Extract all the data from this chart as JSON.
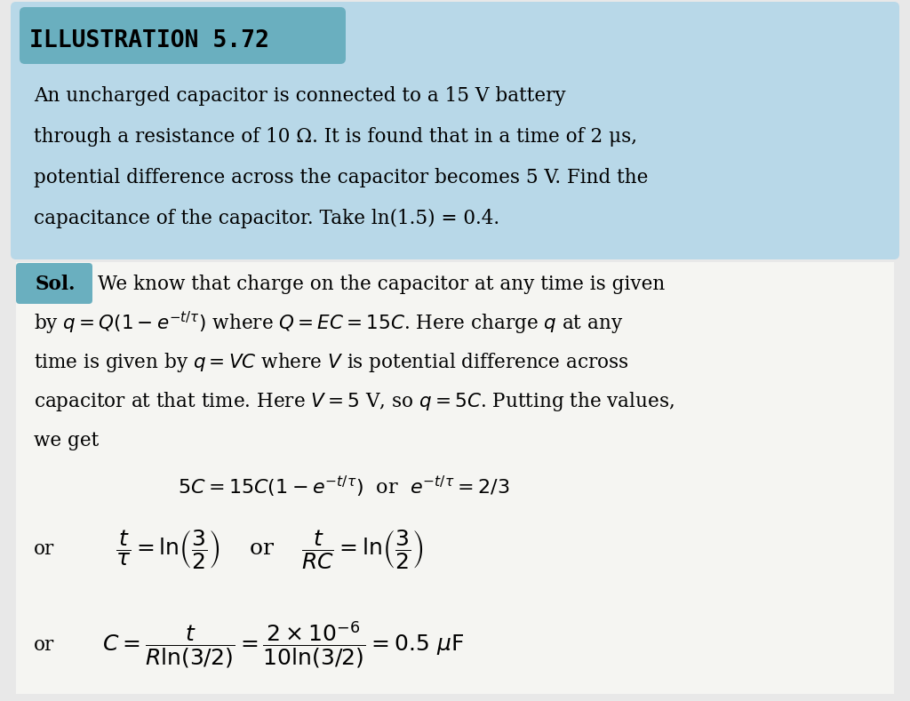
{
  "fig_width": 10.24,
  "fig_height": 7.89,
  "dpi": 100,
  "bg_outer": "#e8e8e8",
  "bg_top_panel": "#b8d8e8",
  "bg_bottom": "#f0f0f0",
  "title_box_color": "#6aafbf",
  "sol_box_color": "#6aafbf",
  "title_text": "ILLUSTRATION 5.72",
  "title_fontsize": 19,
  "body_fontsize": 15.5,
  "eq_fontsize": 15,
  "problem_lines": [
    "An uncharged capacitor is connected to a 15 V battery",
    "through a resistance of 10 Ω. It is found that in a time of 2 μs,",
    "potential difference across the capacitor becomes 5 V. Find the",
    "capacitance of the capacitor. Take ln(1.5) = 0.4."
  ]
}
